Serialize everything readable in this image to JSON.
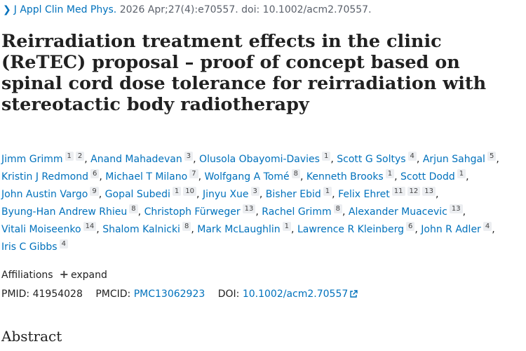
{
  "citation": {
    "journal": "J Appl Clin Med Phys.",
    "rest": "2026 Apr;27(4):e70557. doi: 10.1002/acm2.70557."
  },
  "title": "Reirradiation treatment effects in the clinic (ReTEC) proposal – proof of concept based on spinal cord dose tolerance for reirradiation with stereotactic body radiotherapy",
  "authors": [
    {
      "name": "Jimm Grimm",
      "affils": [
        "1",
        "2"
      ]
    },
    {
      "name": "Anand Mahadevan",
      "affils": [
        "3"
      ]
    },
    {
      "name": "Olusola Obayomi-Davies",
      "affils": [
        "1"
      ]
    },
    {
      "name": "Scott G Soltys",
      "affils": [
        "4"
      ]
    },
    {
      "name": "Arjun Sahgal",
      "affils": [
        "5"
      ]
    },
    {
      "name": "Kristin J Redmond",
      "affils": [
        "6"
      ]
    },
    {
      "name": "Michael T Milano",
      "affils": [
        "7"
      ]
    },
    {
      "name": "Wolfgang A Tomé",
      "affils": [
        "8"
      ]
    },
    {
      "name": "Kenneth Brooks",
      "affils": [
        "1"
      ]
    },
    {
      "name": "Scott Dodd",
      "affils": [
        "1"
      ]
    },
    {
      "name": "John Austin Vargo",
      "affils": [
        "9"
      ]
    },
    {
      "name": "Gopal Subedi",
      "affils": [
        "1",
        "10"
      ]
    },
    {
      "name": "Jinyu Xue",
      "affils": [
        "3"
      ]
    },
    {
      "name": "Bisher Ebid",
      "affils": [
        "1"
      ]
    },
    {
      "name": "Felix Ehret",
      "affils": [
        "11",
        "12",
        "13"
      ]
    },
    {
      "name": "Byung-Han Andrew Rhieu",
      "affils": [
        "8"
      ]
    },
    {
      "name": "Christoph Fürweger",
      "affils": [
        "13"
      ]
    },
    {
      "name": "Rachel Grimm",
      "affils": [
        "8"
      ]
    },
    {
      "name": "Alexander Muacevic",
      "affils": [
        "13"
      ]
    },
    {
      "name": "Vitali Moiseenko",
      "affils": [
        "14"
      ]
    },
    {
      "name": "Shalom Kalnicki",
      "affils": [
        "8"
      ]
    },
    {
      "name": "Mark McLaughlin",
      "affils": [
        "1"
      ]
    },
    {
      "name": "Lawrence R Kleinberg",
      "affils": [
        "6"
      ]
    },
    {
      "name": "John R Adler",
      "affils": [
        "4"
      ]
    },
    {
      "name": "Iris C Gibbs",
      "affils": [
        "4"
      ]
    }
  ],
  "affiliations": {
    "label": "Affiliations",
    "expand_label": "expand"
  },
  "ids": {
    "pmid_label": "PMID:",
    "pmid": "41954028",
    "pmcid_label": "PMCID:",
    "pmcid": "PMC13062923",
    "doi_label": "DOI:",
    "doi": "10.1002/acm2.70557"
  },
  "abstract_heading": "Abstract",
  "icons": {
    "citation": "chevron-right-icon",
    "expand": "plus-icon",
    "doi_link": "external-link-icon"
  },
  "colors": {
    "link": "#0071bc",
    "text": "#212121",
    "muted": "#5b616b",
    "badge_bg": "#eceef1"
  }
}
